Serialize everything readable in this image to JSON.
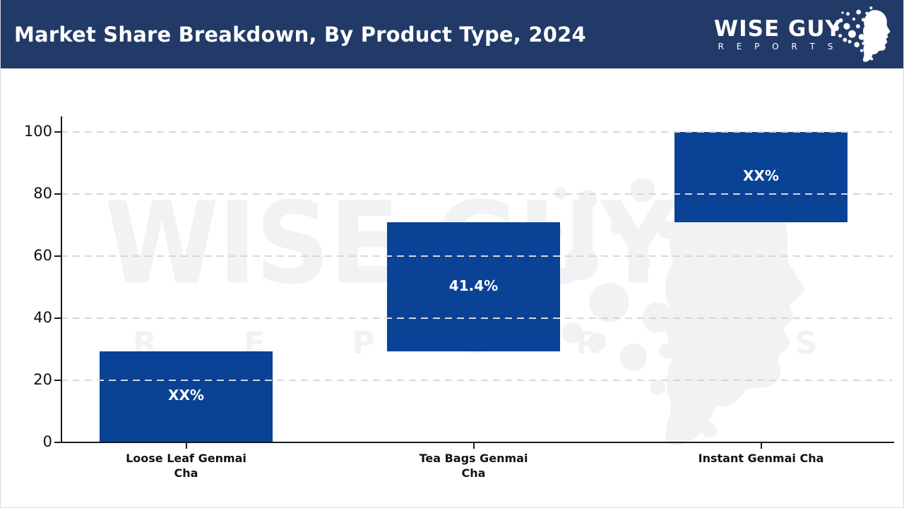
{
  "header": {
    "title": "Market Share Breakdown, By Product Type, 2024",
    "logo_line1": "WISE GUY",
    "logo_line2": "R E P O R T S"
  },
  "watermark": {
    "line1": "WISE GUY",
    "line2": "R E P O R T S"
  },
  "chart_data": {
    "type": "bar",
    "subtype": "floating-percentage-segments",
    "title": "Market Share Breakdown, By Product Type, 2024",
    "categories": [
      [
        "Loose Leaf Genmai",
        "Cha"
      ],
      [
        "Tea Bags Genmai",
        "Cha"
      ],
      [
        "Instant Genmai Cha"
      ]
    ],
    "segments": [
      {
        "category": "Loose Leaf Genmai Cha",
        "start": 0,
        "end": 29.4,
        "label": "XX%"
      },
      {
        "category": "Tea Bags Genmai Cha",
        "start": 29.4,
        "end": 70.8,
        "label": "41.4%"
      },
      {
        "category": "Instant Genmai Cha",
        "start": 70.8,
        "end": 100,
        "label": "XX%"
      }
    ],
    "ylim": [
      0,
      100
    ],
    "yticks": [
      0,
      20,
      40,
      60,
      80,
      100
    ],
    "xlabel": "",
    "ylabel": "",
    "grid": "horizontal-dashed",
    "legend": "none",
    "colors": {
      "bar": "#0a4296",
      "bar_label": "#ffffff",
      "header_bg": "#223a68",
      "grid_line": "#d7d7d7",
      "axis": "#1a1a1a",
      "tick_label": "#111111",
      "watermark": "#f1f2f4"
    }
  }
}
